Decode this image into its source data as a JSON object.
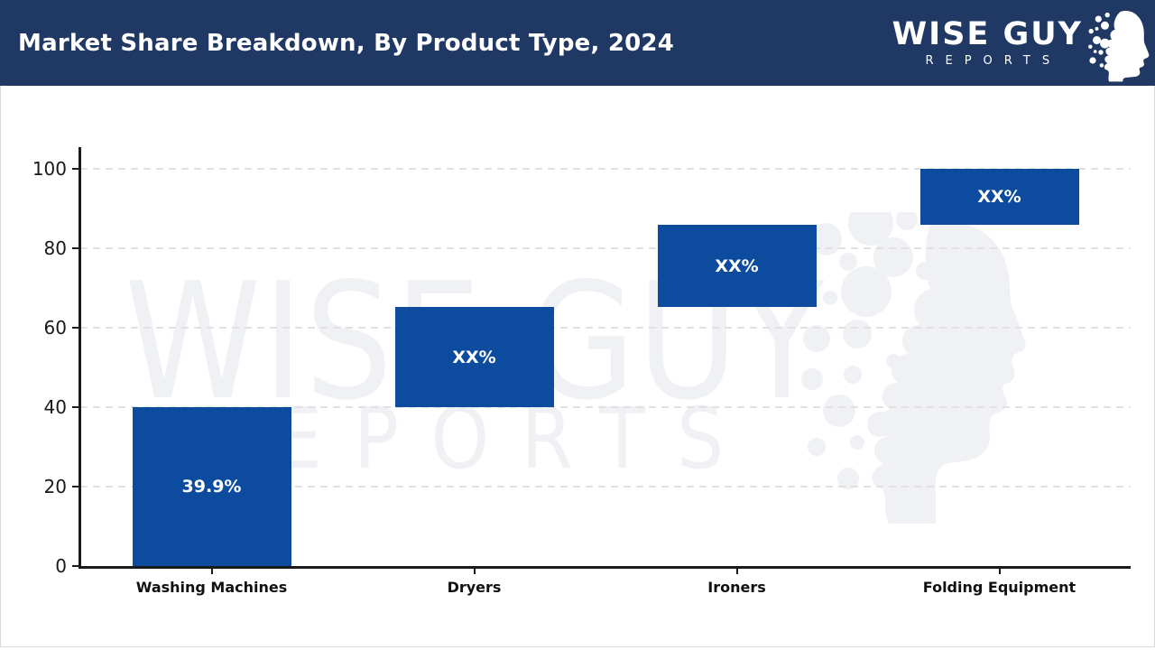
{
  "header": {
    "title": "Market Share Breakdown, By Product Type, 2024",
    "bg_color": "#1f3864",
    "brand": {
      "line1": "WISE GUY",
      "line2": "REPORTS"
    }
  },
  "watermark": {
    "line1": "WISE GUY",
    "line2": "REPORTS"
  },
  "chart_data": {
    "type": "bar",
    "subtype": "waterfall",
    "title": "Market Share Breakdown, By Product Type, 2024",
    "categories": [
      "Washing Machines",
      "Dryers",
      "Ironers",
      "Folding Equipment"
    ],
    "segments": [
      {
        "category": "Washing Machines",
        "start": 0,
        "end": 39.9,
        "label": "39.9%"
      },
      {
        "category": "Dryers",
        "start": 39.9,
        "end": 65.2,
        "label": "XX%"
      },
      {
        "category": "Ironers",
        "start": 65.2,
        "end": 85.8,
        "label": "XX%"
      },
      {
        "category": "Folding Equipment",
        "start": 85.8,
        "end": 100,
        "label": "XX%"
      }
    ],
    "xlabel": "",
    "ylabel": "",
    "ylim": [
      0,
      100
    ],
    "yticks": [
      0,
      20,
      40,
      60,
      80,
      100
    ],
    "grid": "horizontal-dashed",
    "legend": "none",
    "bar_color": "#0d4b9e",
    "bar_label_color": "#ffffff",
    "grid_color": "#e1e1e1",
    "axis_color": "#1a1a1a"
  }
}
